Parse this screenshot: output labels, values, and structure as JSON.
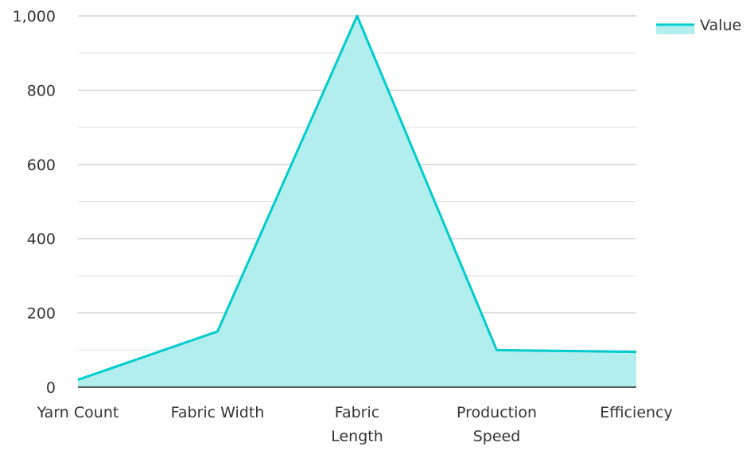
{
  "chart_data": {
    "type": "area",
    "categories": [
      [
        "Yarn Count"
      ],
      [
        "Fabric Width"
      ],
      [
        "Fabric",
        "Length"
      ],
      [
        "Production",
        "Speed"
      ],
      [
        "Efficiency"
      ]
    ],
    "series": [
      {
        "name": "Value",
        "values": [
          20,
          150,
          1000,
          100,
          95
        ],
        "color": "#00CCCC",
        "fill_color": "#B2EEEE"
      }
    ],
    "y_ticks": [
      "0",
      "200",
      "400",
      "600",
      "800",
      "1,000"
    ],
    "y_tick_values": [
      0,
      200,
      400,
      600,
      800,
      1000
    ],
    "ylim": [
      0,
      1000
    ],
    "grid": true,
    "legend_position": "top-right"
  }
}
